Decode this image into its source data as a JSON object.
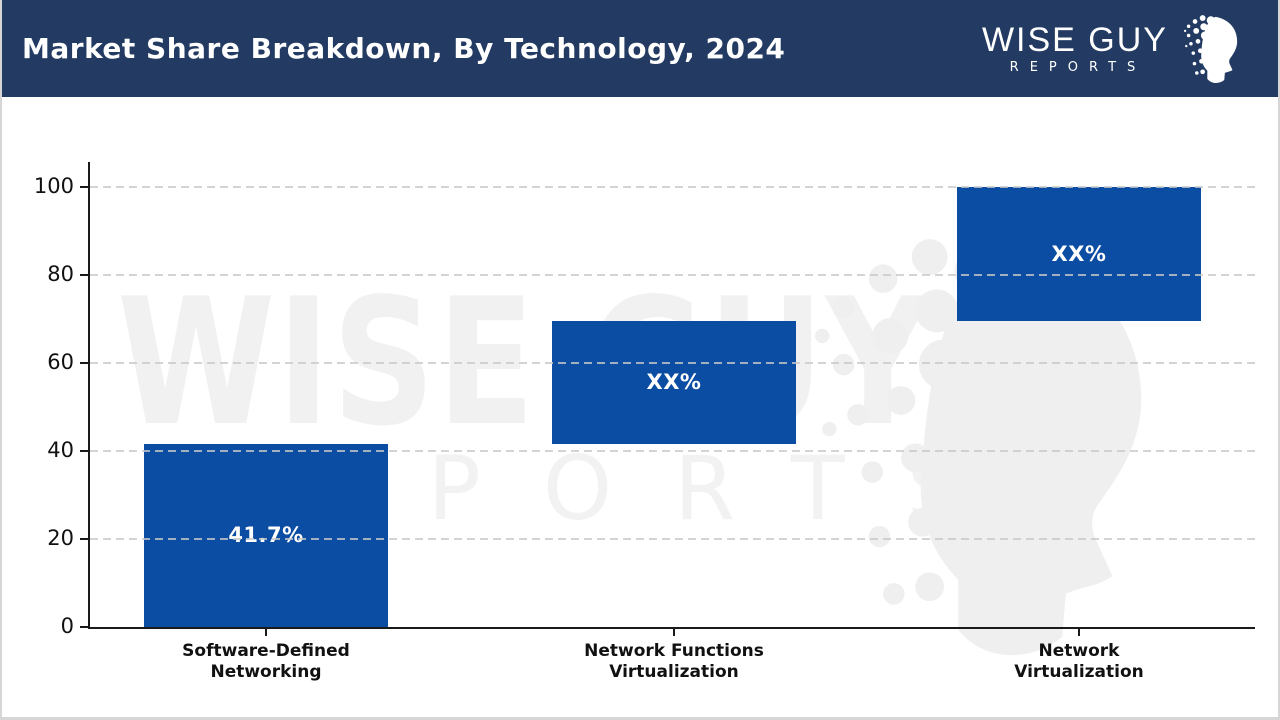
{
  "header": {
    "title": "Market Share Breakdown, By Technology, 2024",
    "logo": {
      "name": "WISE GUY",
      "tagline": "REPORTS"
    }
  },
  "watermark": {
    "line1": "WISE GUY",
    "line2": "REPORTS"
  },
  "chart_data": {
    "type": "bar",
    "subtype": "floating-segment-waterfall",
    "title": "Market Share Breakdown, By Technology, 2024",
    "xlabel": "",
    "ylabel": "",
    "ylim": [
      0,
      105
    ],
    "yticks": [
      0,
      20,
      40,
      60,
      80,
      100
    ],
    "grid": "horizontal-dashed-over-bars",
    "legend": "none",
    "bar_color": "#0B4DA2",
    "bar_label_color": "#FFFFFF",
    "categories": [
      {
        "line1": "Software-Defined",
        "line2": "Networking"
      },
      {
        "line1": "Network Functions",
        "line2": "Virtualization"
      },
      {
        "line1": "Network",
        "line2": "Virtualization"
      }
    ],
    "segments": [
      {
        "category": "Software-Defined Networking",
        "start": 0,
        "end": 41.7,
        "label": "41.7%"
      },
      {
        "category": "Network Functions Virtualization",
        "start": 41.7,
        "end": 69.5,
        "label": "XX%"
      },
      {
        "category": "Network Virtualization",
        "start": 69.5,
        "end": 100,
        "label": "XX%"
      }
    ]
  }
}
